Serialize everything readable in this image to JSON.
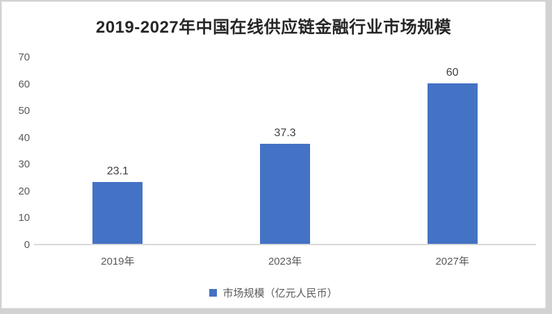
{
  "frame": {
    "outer_background": "#d2d2d2",
    "card_background": "#ffffff"
  },
  "chart_data": {
    "type": "bar",
    "title": "2019-2027年中国在线供应链金融行业市场规模",
    "categories": [
      "2019年",
      "2023年",
      "2027年"
    ],
    "series": [
      {
        "name": "市场规模（亿元人民币）",
        "values": [
          23.1,
          37.3,
          60
        ]
      }
    ],
    "data_labels": [
      "23.1",
      "37.3",
      "60"
    ],
    "xlabel": "",
    "ylabel": "",
    "ylim": [
      0,
      70
    ],
    "yticks": [
      0,
      10,
      20,
      30,
      40,
      50,
      60,
      70
    ],
    "grid": false,
    "legend_position": "bottom",
    "legend_label": "市场规模（亿元人民币）",
    "colors": {
      "bar": "#4472C4",
      "legend_marker": "#4472C4",
      "axis_line": "#d9d9d9",
      "tick_text": "#595959",
      "data_label_text": "#404040",
      "title_text": "#262626"
    }
  }
}
